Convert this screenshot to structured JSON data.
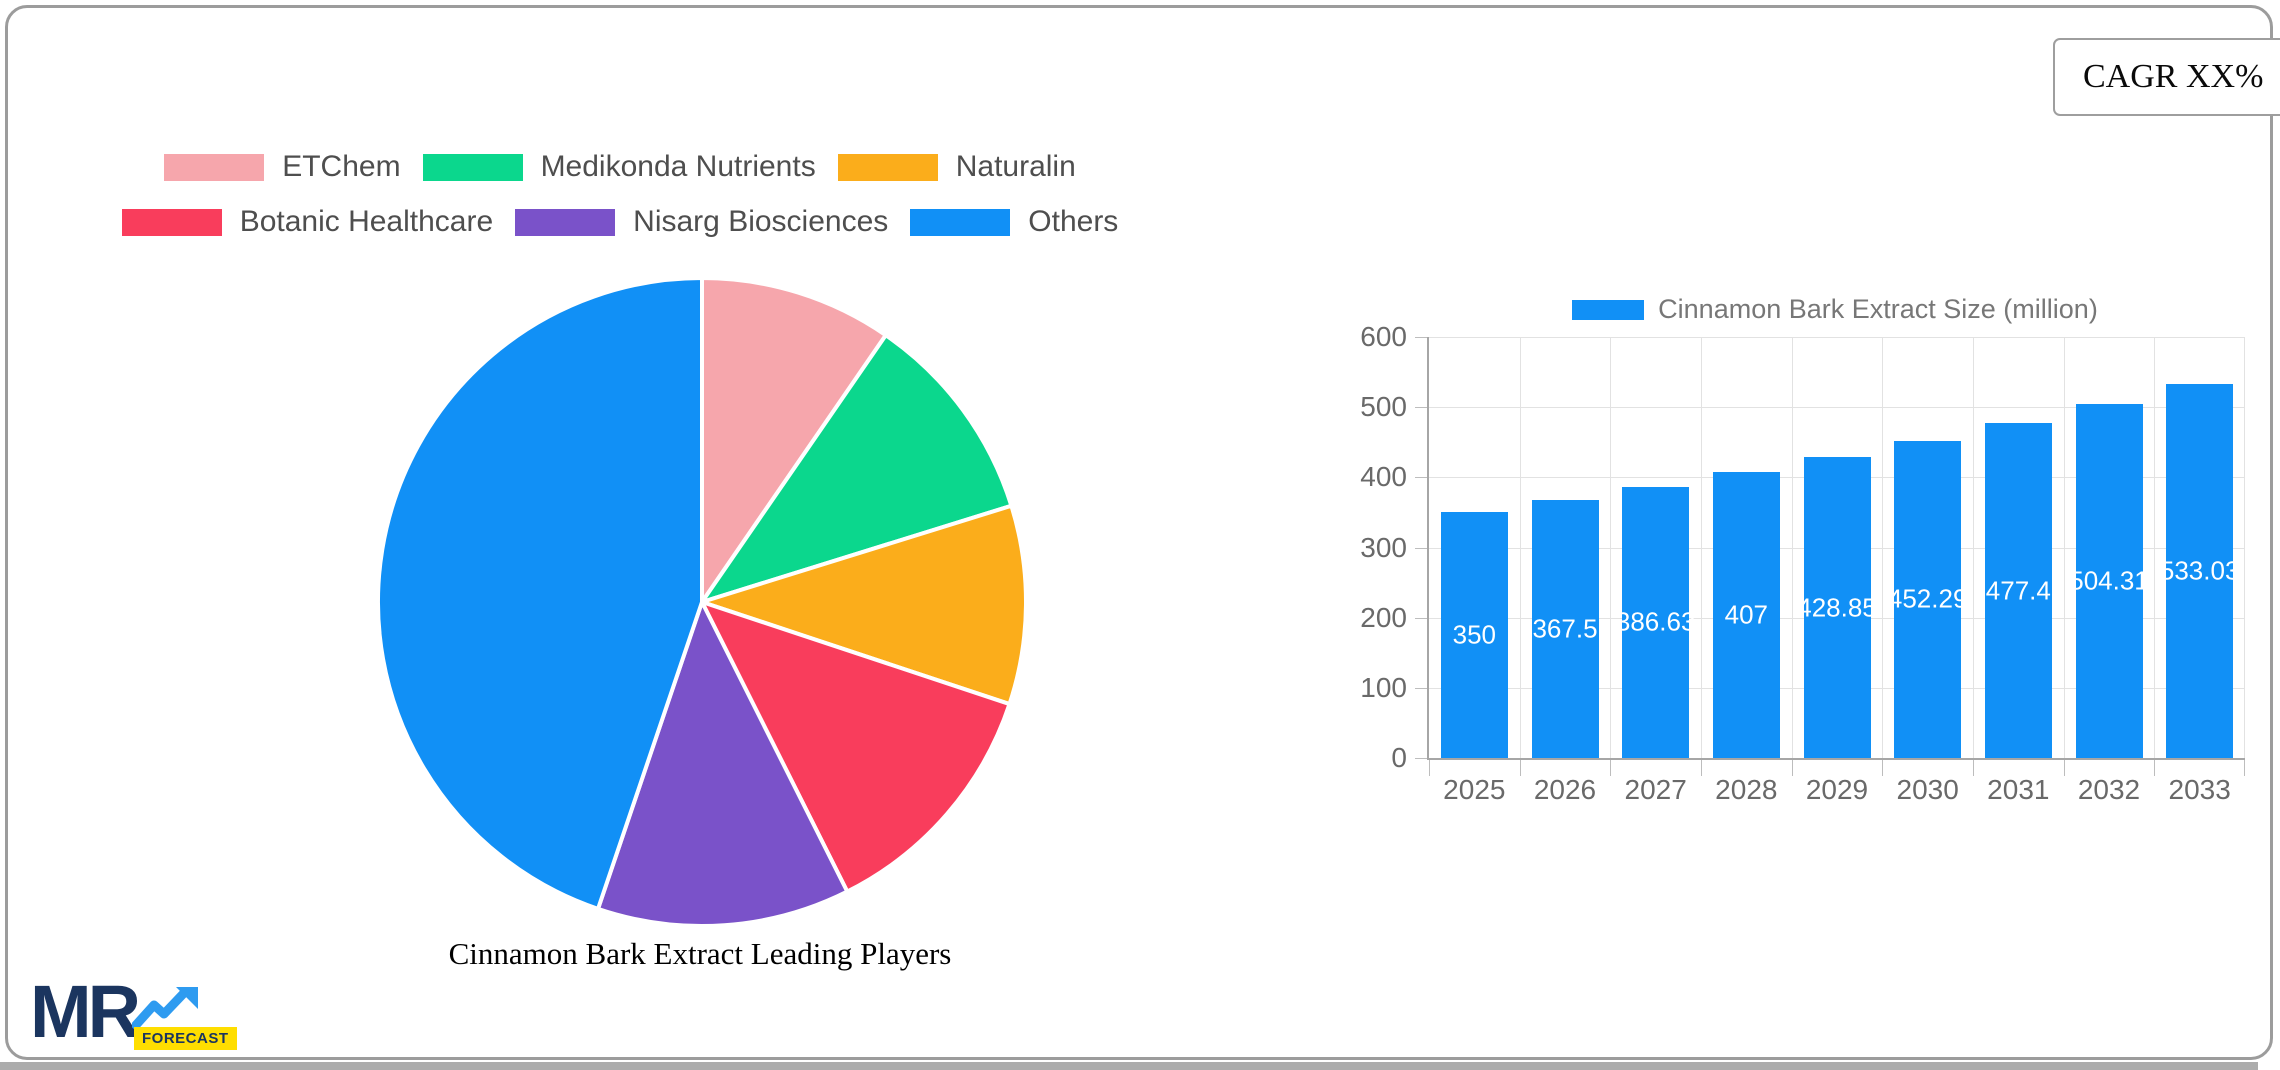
{
  "cagr_label": "CAGR XX%",
  "logo": {
    "mr": "MR",
    "forecast": "FORECAST",
    "navy": "#1B355F",
    "blue": "#2E9BF0",
    "yellow": "#FFDE00"
  },
  "chart_data": [
    {
      "type": "pie",
      "title": "Cinnamon Bark Extract Leading Players",
      "legend_position": "top",
      "slices": [
        {
          "label": "ETChem",
          "color": "#F6A6AC",
          "share_pct_est": 9.6
        },
        {
          "label": "Medikonda Nutrients",
          "color": "#0BD78D",
          "share_pct_est": 10.6
        },
        {
          "label": "Naturalin",
          "color": "#FBAD1B",
          "share_pct_est": 9.9
        },
        {
          "label": "Botanic Healthcare",
          "color": "#F93D5C",
          "share_pct_est": 12.5
        },
        {
          "label": "Nisarg Biosciences",
          "color": "#7A52C9",
          "share_pct_est": 12.6
        },
        {
          "label": "Others",
          "color": "#1190F6",
          "share_pct_est": 44.8
        }
      ]
    },
    {
      "type": "bar",
      "legend_label": "Cinnamon Bark Extract Size (million)",
      "bar_color": "#1190F6",
      "categories": [
        "2025",
        "2026",
        "2027",
        "2028",
        "2029",
        "2030",
        "2031",
        "2032",
        "2033"
      ],
      "values": [
        350,
        367.5,
        386.63,
        407,
        428.85,
        452.29,
        477.4,
        504.31,
        533.03
      ],
      "value_labels": [
        "350",
        "367.5",
        "386.63",
        "407",
        "428.85",
        "452.29",
        "477.4",
        "504.31",
        "533.03"
      ],
      "ylim": [
        0,
        600
      ],
      "ytick_step": 100,
      "yticks": [
        "600",
        "500",
        "400",
        "300",
        "200",
        "100",
        "0"
      ],
      "grid": true,
      "legend_position": "top"
    }
  ]
}
